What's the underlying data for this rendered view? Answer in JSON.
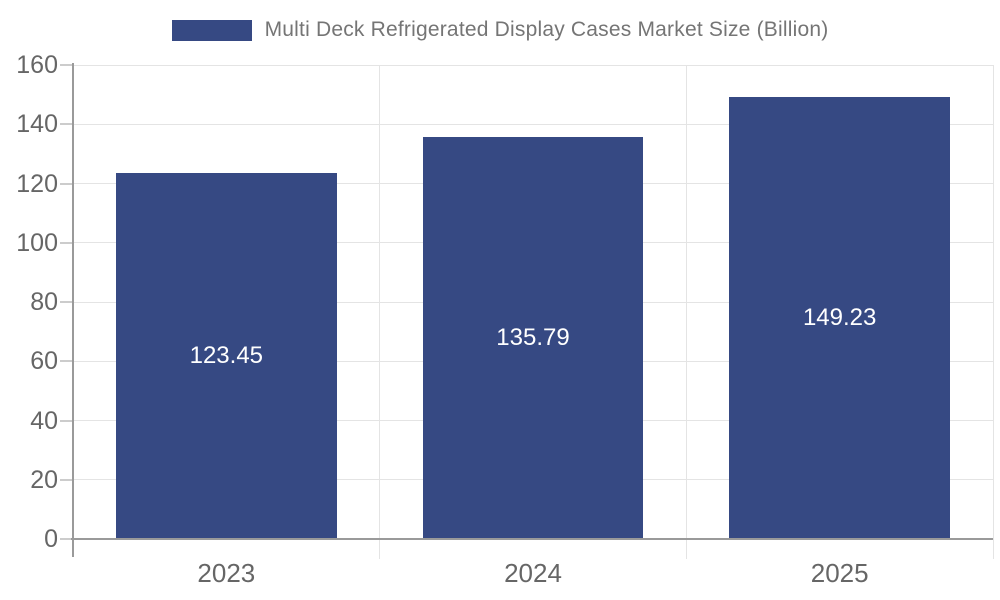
{
  "chart_data": {
    "type": "bar",
    "title": "Multi Deck Refrigerated Display Cases Market Size (Billion)",
    "legend": {
      "label": "Multi Deck Refrigerated Display Cases Market Size (Billion)",
      "position": "top-center"
    },
    "categories": [
      "2023",
      "2024",
      "2025"
    ],
    "series": [
      {
        "name": "Multi Deck Refrigerated Display Cases Market Size (Billion)",
        "values": [
          123.45,
          135.79,
          149.23
        ],
        "value_labels": [
          "123.45",
          "135.79",
          "149.23"
        ]
      }
    ],
    "xlabel": "",
    "ylabel": "",
    "ylim": [
      0,
      160
    ],
    "yticks": [
      0,
      20,
      40,
      60,
      80,
      100,
      120,
      140,
      160
    ],
    "grid": true,
    "value_labels_inside_bars": true,
    "colors": {
      "bar": "#364983",
      "value_label_text": "#ffffff",
      "grid_line": "#e4e4e4",
      "axis_line": "#9a9a9a",
      "tick_mark": "#cccccc",
      "ytick_text": "#666666",
      "xtick_text": "#666666",
      "legend_text": "#757575",
      "background": "#ffffff"
    }
  }
}
